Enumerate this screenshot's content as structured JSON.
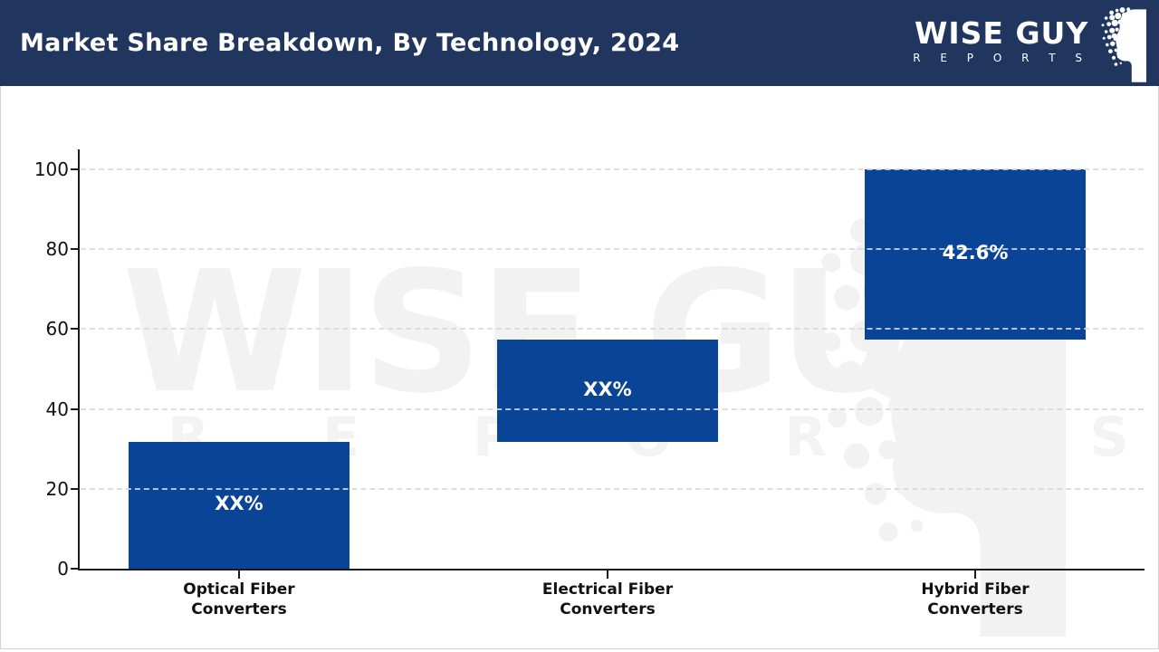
{
  "header": {
    "title": "Market Share Breakdown, By Technology, 2024",
    "logo": {
      "name": "WISE GUY",
      "sub": "R E P O R T S"
    }
  },
  "watermark": {
    "line1": "WISE GUY",
    "line2": "R E P O R T S"
  },
  "colors": {
    "header_bg": "#21365F",
    "bar": "#0A4496",
    "axis": "#1A1A1A",
    "grid": "#D9D9D9",
    "tick_text": "#111111",
    "bar_label_text": "#FFFFFF",
    "watermark": "#F2F2F2",
    "frame": "#D6D6D6"
  },
  "chart_data": {
    "type": "bar",
    "subtype": "waterfall",
    "title": "Market Share Breakdown, By Technology, 2024",
    "categories": [
      "Optical Fiber\nConverters",
      "Electrical Fiber\nConverters",
      "Hybrid Fiber\nConverters"
    ],
    "bars": [
      {
        "category": "Optical Fiber Converters",
        "base": 0,
        "top": 31.7,
        "label": "XX%"
      },
      {
        "category": "Electrical Fiber Converters",
        "base": 31.7,
        "top": 57.4,
        "label": "XX%"
      },
      {
        "category": "Hybrid Fiber Converters",
        "base": 57.4,
        "top": 100,
        "label": "42.6%"
      }
    ],
    "xlabel": "",
    "ylabel": "",
    "ylim": [
      0,
      100
    ],
    "yticks": [
      0,
      20,
      40,
      60,
      80,
      100
    ],
    "grid": "horizontal-dashed",
    "legend": "none"
  }
}
